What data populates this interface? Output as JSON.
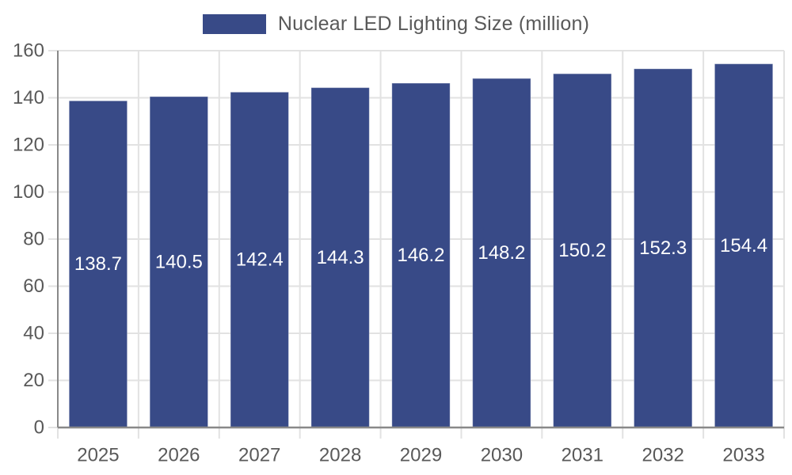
{
  "chart_data": {
    "type": "bar",
    "title": "",
    "legend": {
      "label": "Nuclear LED Lighting Size (million)",
      "position": "top-center"
    },
    "categories": [
      "2025",
      "2026",
      "2027",
      "2028",
      "2029",
      "2030",
      "2031",
      "2032",
      "2033"
    ],
    "values": [
      138.7,
      140.5,
      142.4,
      144.3,
      146.2,
      148.2,
      150.2,
      152.3,
      154.4
    ],
    "xlabel": "",
    "ylabel": "",
    "ylim": [
      0,
      160
    ],
    "yticks": [
      0,
      20,
      40,
      60,
      80,
      100,
      120,
      140,
      160
    ],
    "grid": true,
    "value_label_decimals": 1,
    "colors": {
      "bar": "#384A87",
      "bar_edge": "rgba(255,255,255,0.35)",
      "value_label": "#ffffff",
      "grid": "#e2e2e2",
      "axis": "#898989",
      "tick_label": "#595959",
      "legend_text": "#595959",
      "background": "#ffffff"
    }
  }
}
